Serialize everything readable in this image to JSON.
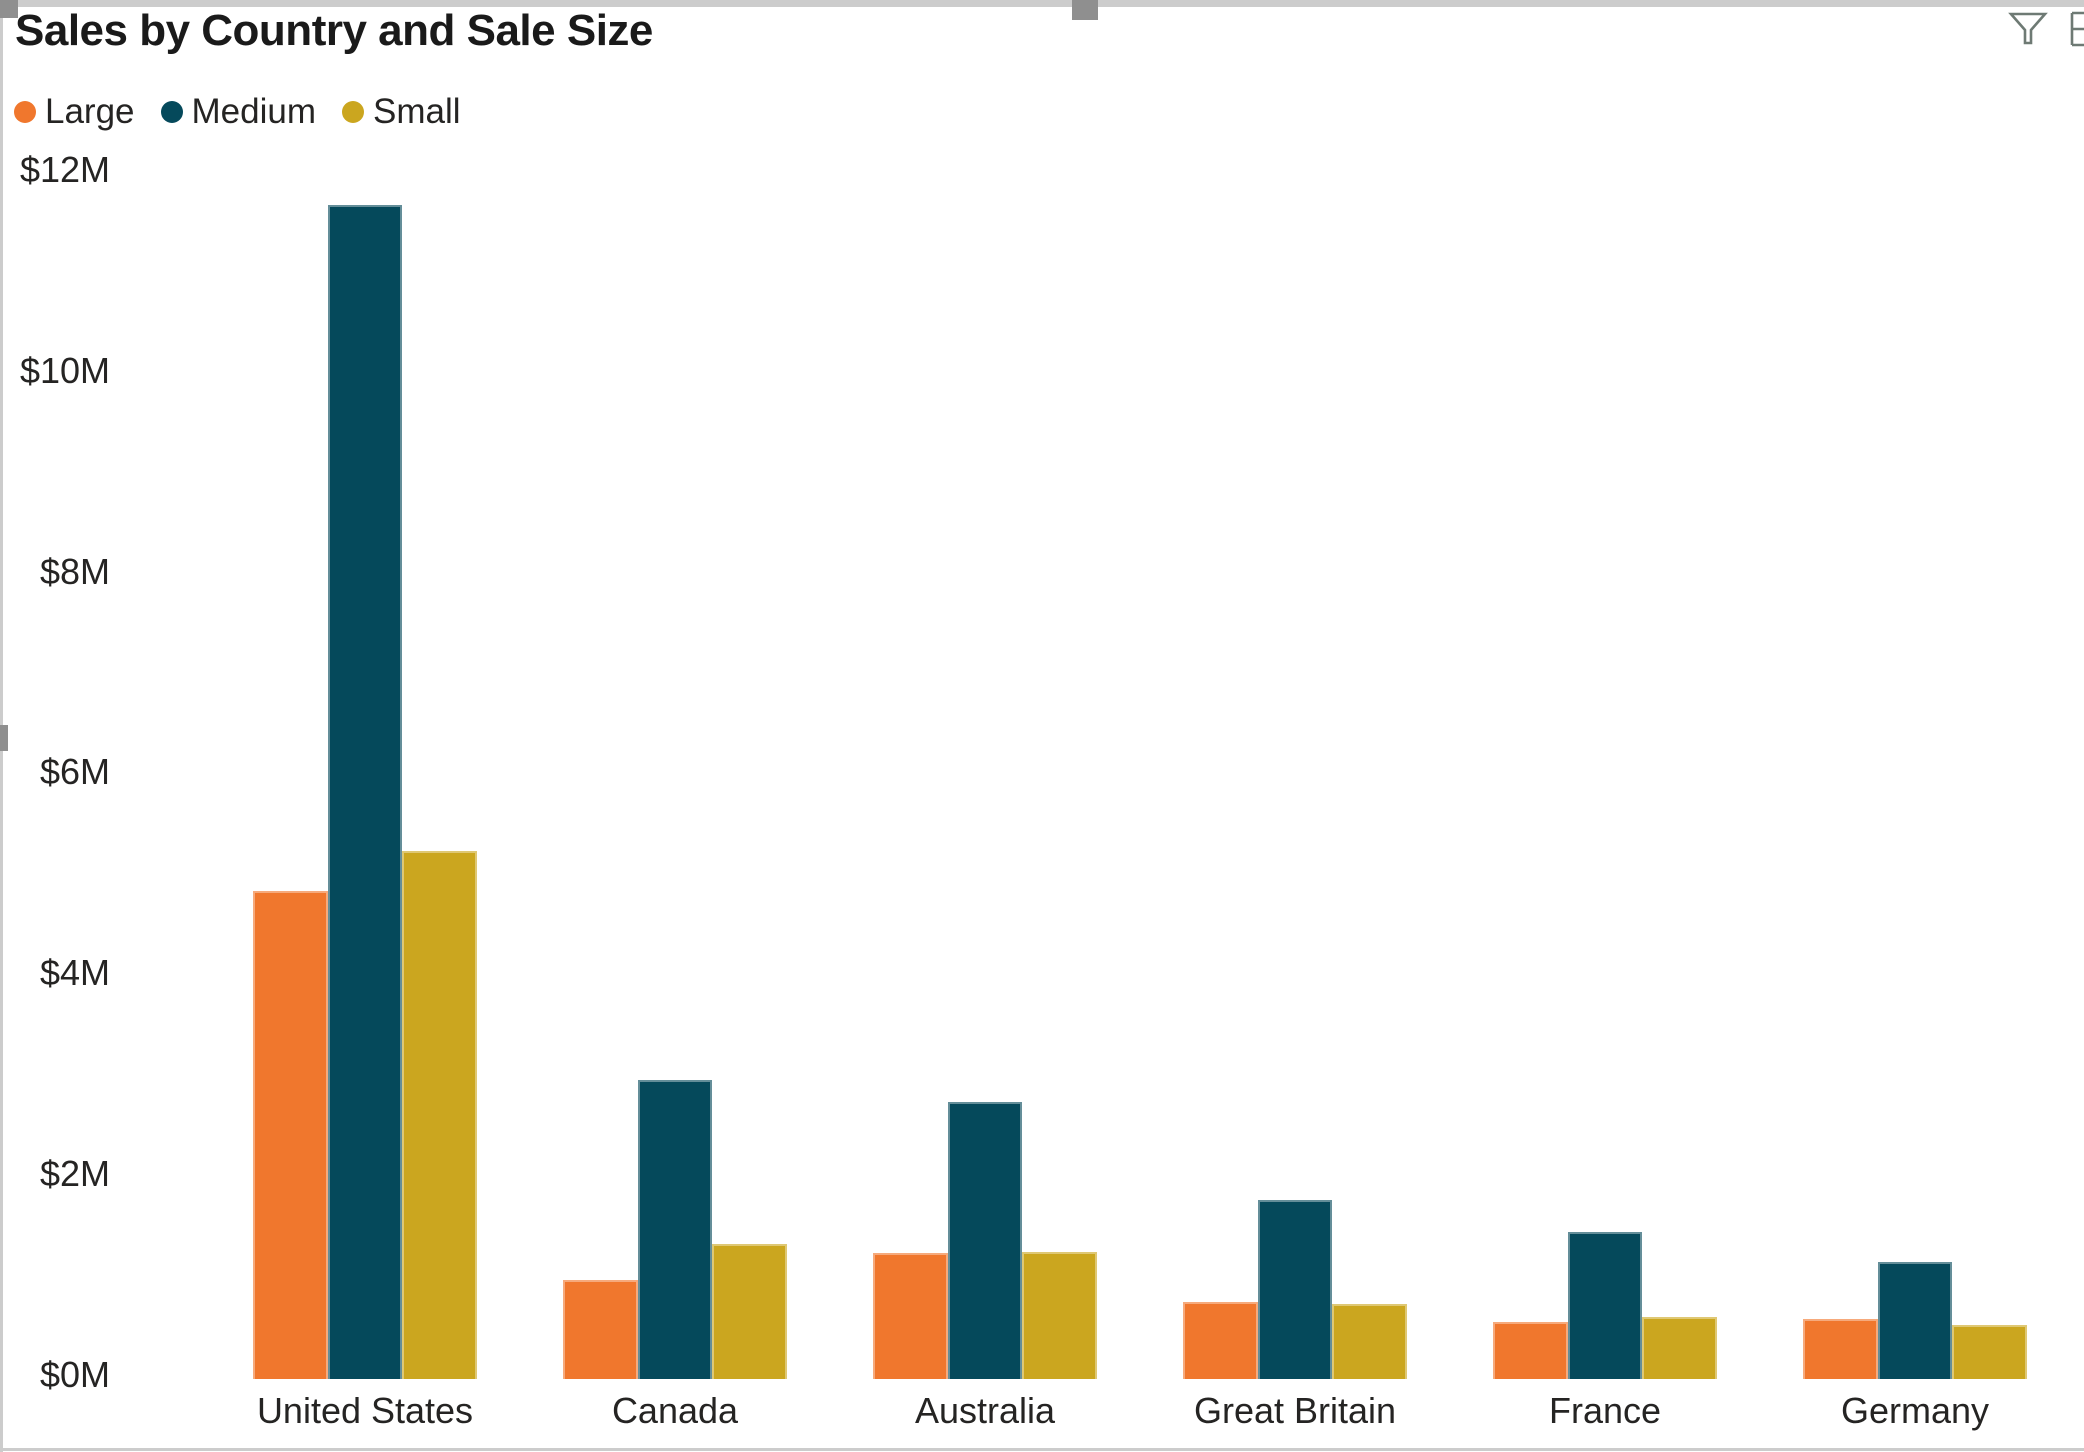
{
  "visual": {
    "title": "Sales by Country and Sale Size",
    "header_icons": [
      {
        "name": "filter-icon",
        "tooltip": "Filters"
      },
      {
        "name": "clipped-edge-icon",
        "tooltip": ""
      }
    ],
    "selection_chrome": {
      "edge_color": "#cccccc",
      "handle_color": "#8f8f8f"
    },
    "icon_color": "#6e7a74"
  },
  "chart_data": {
    "type": "bar",
    "subtype": "clustered-column",
    "title": "Sales by Country and Sale Size",
    "xlabel": "",
    "ylabel": "",
    "value_unit": "USD millions",
    "ylim": [
      0,
      12
    ],
    "ytick_values": [
      0,
      2,
      4,
      6,
      8,
      10,
      12
    ],
    "ytick_labels": [
      "$0M",
      "$2M",
      "$4M",
      "$6M",
      "$8M",
      "$10M",
      "$12M"
    ],
    "grid": false,
    "legend_position": "top-left",
    "categories": [
      "United States",
      "Canada",
      "Australia",
      "Great Britain",
      "France",
      "Germany"
    ],
    "series": [
      {
        "name": "Large",
        "color": "#F0772D",
        "values": [
          4.86,
          0.99,
          1.25,
          0.77,
          0.57,
          0.6
        ]
      },
      {
        "name": "Medium",
        "color": "#05495B",
        "values": [
          11.69,
          2.98,
          2.76,
          1.78,
          1.46,
          1.17
        ]
      },
      {
        "name": "Small",
        "color": "#CBA61F",
        "values": [
          5.26,
          1.34,
          1.26,
          0.75,
          0.62,
          0.54
        ]
      }
    ]
  }
}
